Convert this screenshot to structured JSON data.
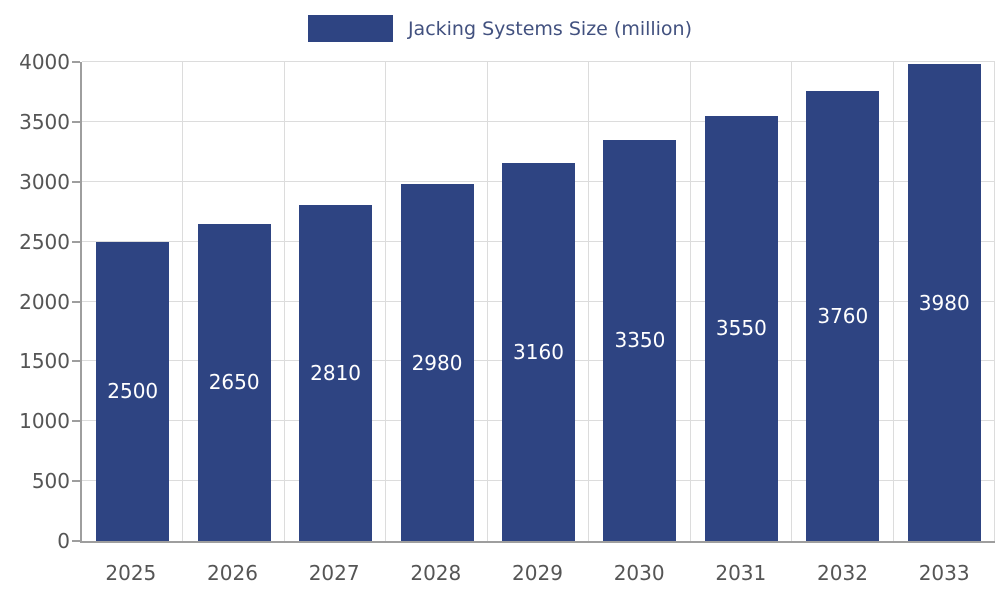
{
  "legend": {
    "label": "Jacking Systems Size (million)"
  },
  "chart_data": {
    "type": "bar",
    "title": "Jacking Systems Size (million)",
    "categories": [
      "2025",
      "2026",
      "2027",
      "2028",
      "2029",
      "2030",
      "2031",
      "2032",
      "2033"
    ],
    "values": [
      2500,
      2650,
      2810,
      2980,
      3160,
      3350,
      3550,
      3760,
      3980
    ],
    "xlabel": "",
    "ylabel": "",
    "ylim": [
      0,
      4000
    ],
    "ytick_step": 500,
    "grid": true,
    "legend_position": "top",
    "colors": {
      "bar": "#2E4482",
      "bar_label": "#FFFFFF",
      "axis_text": "#555555",
      "legend_text": "#42517F",
      "gridline": "#DCDCDC",
      "axis_line": "#9E9E9E"
    }
  }
}
